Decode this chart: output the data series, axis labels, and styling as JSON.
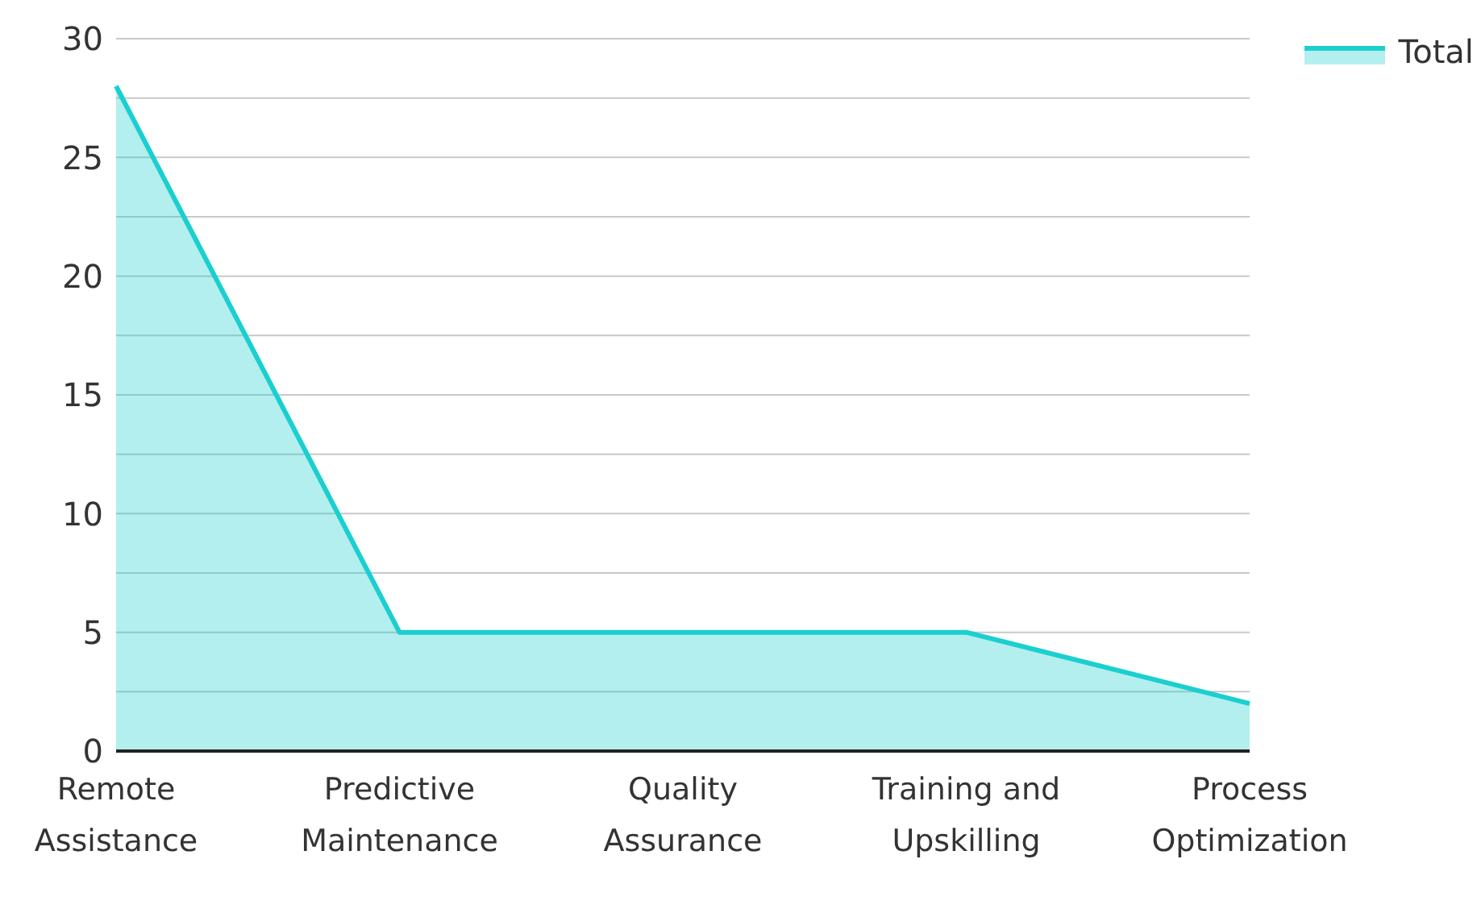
{
  "chart_data": {
    "type": "area",
    "categories": [
      "Remote Assistance",
      "Predictive Maintenance",
      "Quality Assurance",
      "Training and Upskilling",
      "Process Optimization"
    ],
    "series": [
      {
        "name": "Total",
        "color": "#1ccfcf",
        "values": [
          28,
          5,
          5,
          5,
          2
        ]
      }
    ],
    "ylim": [
      0,
      30
    ],
    "yticks": [
      0,
      {
        "value": 2.5,
        "label": null
      },
      5,
      {
        "value": 7.5,
        "label": null
      },
      10,
      {
        "value": 12.5,
        "label": null
      },
      15,
      {
        "value": 17.5,
        "label": null
      },
      20,
      {
        "value": 22.5,
        "label": null
      },
      25,
      {
        "value": 27.5,
        "label": null
      },
      30
    ],
    "grid": "y",
    "legend": "top right",
    "marker": "none"
  }
}
